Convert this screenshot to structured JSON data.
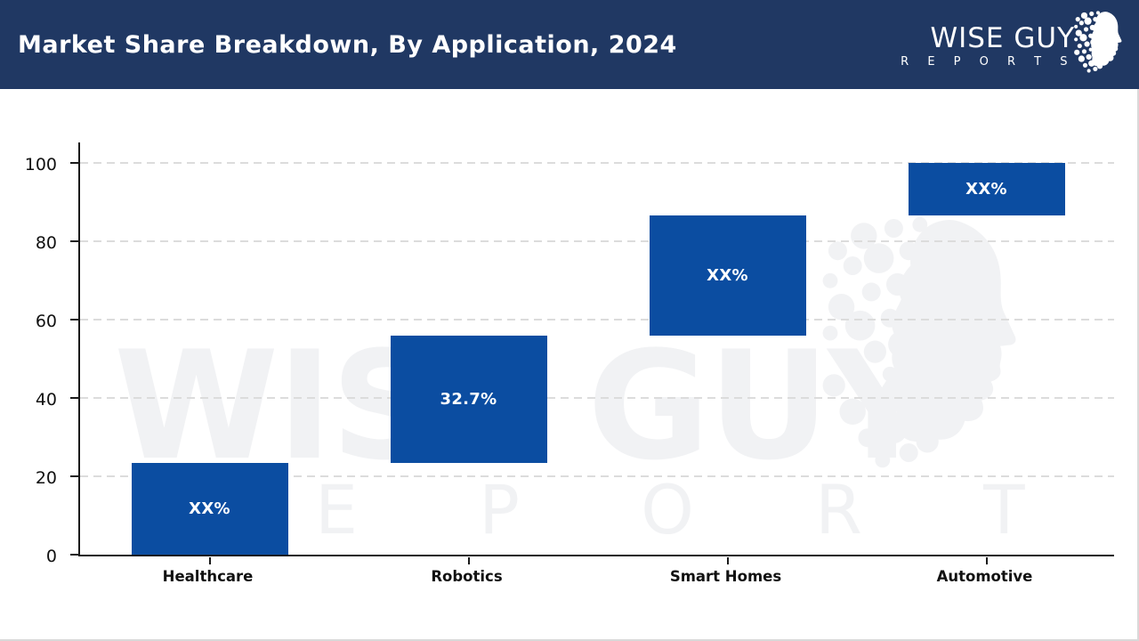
{
  "header": {
    "title": "Market Share Breakdown, By Application, 2024",
    "logo": {
      "line1": "WISE GUY",
      "line2": "R E P O R T S"
    }
  },
  "watermark": {
    "line1": "WISE GUY",
    "line2": "R E P O R T S"
  },
  "colors": {
    "header_bg": "#203863",
    "bar": "#0b4da1",
    "grid": "#dcdcdc",
    "axis": "#1a1a1a",
    "bar_label": "#ffffff",
    "watermark": "#f1f2f4"
  },
  "chart_data": {
    "type": "bar",
    "subtype": "waterfall",
    "title": "Market Share Breakdown, By Application, 2024",
    "categories": [
      "Healthcare",
      "Robotics",
      "Smart Homes",
      "Automotive"
    ],
    "segments": [
      {
        "category": "Healthcare",
        "start": 0,
        "end": 23.3,
        "label": "XX%"
      },
      {
        "category": "Robotics",
        "start": 23.3,
        "end": 56.0,
        "label": "32.7%"
      },
      {
        "category": "Smart Homes",
        "start": 56.0,
        "end": 86.6,
        "label": "XX%"
      },
      {
        "category": "Automotive",
        "start": 86.6,
        "end": 100,
        "label": "XX%"
      }
    ],
    "known_values": {
      "Robotics": 32.7
    },
    "ylim": [
      0,
      100
    ],
    "yticks": [
      0,
      20,
      40,
      60,
      80,
      100
    ],
    "grid": "horizontal dashed",
    "legend": "none"
  }
}
